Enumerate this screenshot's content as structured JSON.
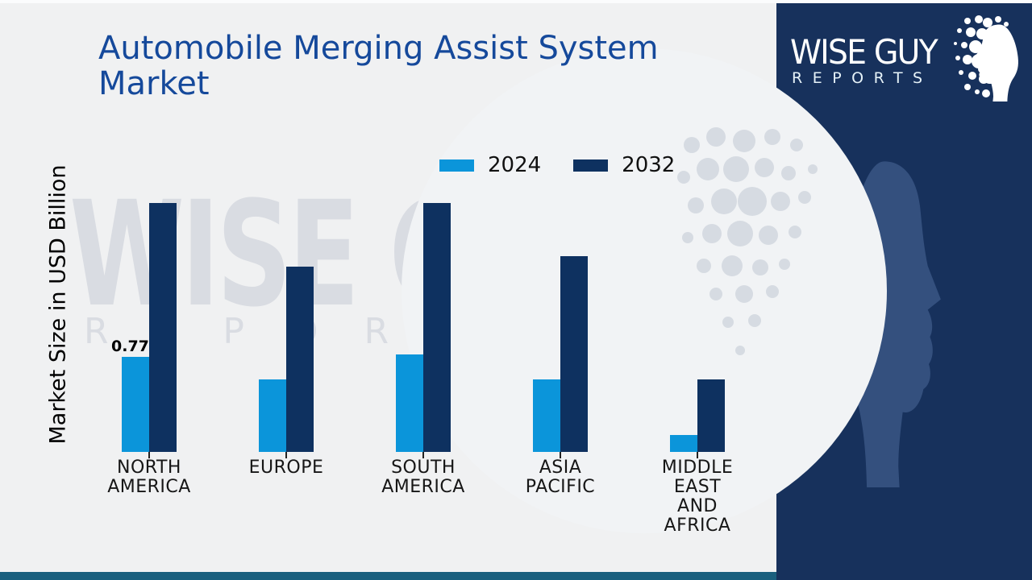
{
  "chart_data": {
    "type": "bar",
    "title": "Automobile Merging Assist System Market",
    "ylabel": "Market Size in USD Billion",
    "xlabel": "",
    "categories": [
      "NORTH AMERICA",
      "EUROPE",
      "SOUTH AMERICA",
      "ASIA PACIFIC",
      "MIDDLE EAST AND AFRICA"
    ],
    "series": [
      {
        "name": "2024",
        "color": "#0b95da",
        "values": [
          0.77,
          0.59,
          0.79,
          0.59,
          0.14
        ]
      },
      {
        "name": "2032",
        "color": "#0e3160",
        "values": [
          2.02,
          1.5,
          2.02,
          1.59,
          0.59
        ]
      }
    ],
    "ylim": [
      0,
      2.2
    ],
    "grid": false,
    "legend_position": "top-center",
    "bar_value_labels": [
      {
        "series_index": 0,
        "category_index": 0,
        "text": "0.77"
      }
    ]
  },
  "watermark": {
    "line1": "WISE GUY",
    "line2": "REPORTS"
  },
  "logo": {
    "line1": "WISE GUY",
    "line2": "REPORTS"
  },
  "colors": {
    "background": "#f0f1f2",
    "title_blue": "#15499b",
    "bar_2024": "#0b95da",
    "bar_2032": "#0e3160",
    "brand_panel_navy": "#17315c",
    "brand_face_navy": "#34507e",
    "footer_teal": "#1a5f7e",
    "watermark_gray": "#d9dce2"
  }
}
